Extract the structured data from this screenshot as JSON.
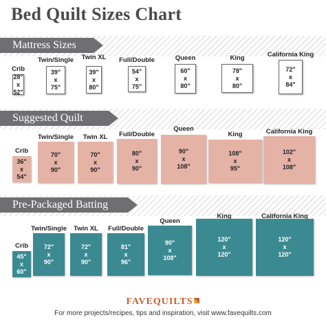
{
  "title": "Bed Quilt Sizes Chart",
  "colors": {
    "mattress_border": "#666666",
    "quilt_fill": "#e4b3a6",
    "batting_fill": "#3b8a92",
    "banner": "#6f6f71",
    "brand": "#c2612e"
  },
  "sections": {
    "mattress": {
      "heading": "Mattress Sizes",
      "items": [
        {
          "name": "Crib",
          "w": "28\"",
          "h": "52\""
        },
        {
          "name": "Twin/Single",
          "w": "39\"",
          "h": "75\""
        },
        {
          "name": "Twin XL",
          "w": "39\"",
          "h": "80\""
        },
        {
          "name": "Full/Double",
          "w": "54\"",
          "h": "75\""
        },
        {
          "name": "Queen",
          "w": "60\"",
          "h": "80\""
        },
        {
          "name": "King",
          "w": "78\"",
          "h": "80\""
        },
        {
          "name": "California King",
          "w": "72\"",
          "h": "84\""
        }
      ]
    },
    "quilt": {
      "heading": "Suggested  Quilt Sizes",
      "items": [
        {
          "name": "Crib",
          "w": "36\"",
          "h": "54\""
        },
        {
          "name": "Twin/Single",
          "w": "70\"",
          "h": "90\""
        },
        {
          "name": "Twin XL",
          "w": "70\"",
          "h": "90\""
        },
        {
          "name": "Full/Double",
          "w": "80\"",
          "h": "90\""
        },
        {
          "name": "Queen",
          "w": "90\"",
          "h": "108\""
        },
        {
          "name": "King",
          "w": "108\"",
          "h": "95\""
        },
        {
          "name": "California King",
          "w": "102\"",
          "h": "108\""
        }
      ]
    },
    "batting": {
      "heading": "Pre-Packaged Batting Sizes",
      "items": [
        {
          "name": "Crib",
          "w": "45\"",
          "h": "60\""
        },
        {
          "name": "Twin/Single",
          "w": "72\"",
          "h": "90\""
        },
        {
          "name": "Twin XL",
          "w": "72\"",
          "h": "90\""
        },
        {
          "name": "Full/Double",
          "w": "81\"",
          "h": "96\""
        },
        {
          "name": "Queen",
          "w": "90\"",
          "h": "108\""
        },
        {
          "name": "King",
          "w": "120\"",
          "h": "120\""
        },
        {
          "name": "California King",
          "w": "120\"",
          "h": "120\""
        }
      ]
    }
  },
  "x_separator": "x",
  "footer": {
    "logo": "FAVEQUILTS",
    "text": "For more projects/recipes, tips and inspiration, visit www.favequilts.com"
  }
}
